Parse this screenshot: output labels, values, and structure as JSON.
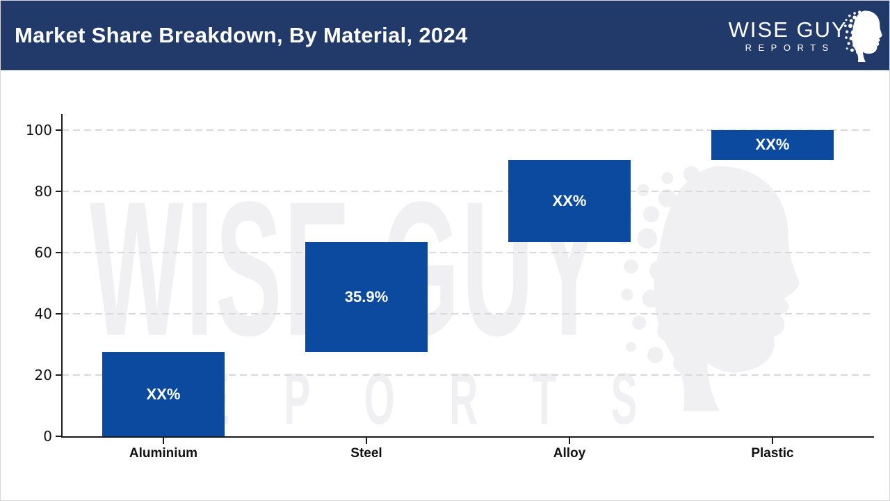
{
  "header": {
    "title": "Market Share Breakdown, By Material, 2024",
    "logo": {
      "wordmark": "WISE GUY",
      "subtitle": "REPORTS"
    }
  },
  "watermark": {
    "wordmark": "WISE GUY",
    "subtitle": "R E P O R T S"
  },
  "colors": {
    "header_bg": "#213a6a",
    "bar": "#0b4a9e",
    "bar_label": "#ffffff",
    "grid": "#d9d9d9",
    "axis": "#1a1a1a",
    "watermark": "#f0f0f2"
  },
  "chart_data": {
    "type": "bar",
    "subtype": "floating-segment-bars (stacked waterfall, segments sum to 100%)",
    "title": "Market Share Breakdown, By Material, 2024",
    "xlabel": "",
    "ylabel": "",
    "categories": [
      "Aluminium",
      "Steel",
      "Alloy",
      "Plastic"
    ],
    "segments": [
      {
        "category": "Aluminium",
        "start": 0,
        "end": 27.4,
        "label": "XX%"
      },
      {
        "category": "Steel",
        "start": 27.4,
        "end": 63.3,
        "label": "35.9%",
        "value": 35.9
      },
      {
        "category": "Alloy",
        "start": 63.3,
        "end": 90.2,
        "label": "XX%"
      },
      {
        "category": "Plastic",
        "start": 90.2,
        "end": 100.1,
        "label": "XX%"
      }
    ],
    "ylim": [
      0,
      105
    ],
    "yticks": [
      0,
      20,
      40,
      60,
      80,
      100
    ],
    "grid": "horizontal-dashed",
    "legend": "none"
  }
}
